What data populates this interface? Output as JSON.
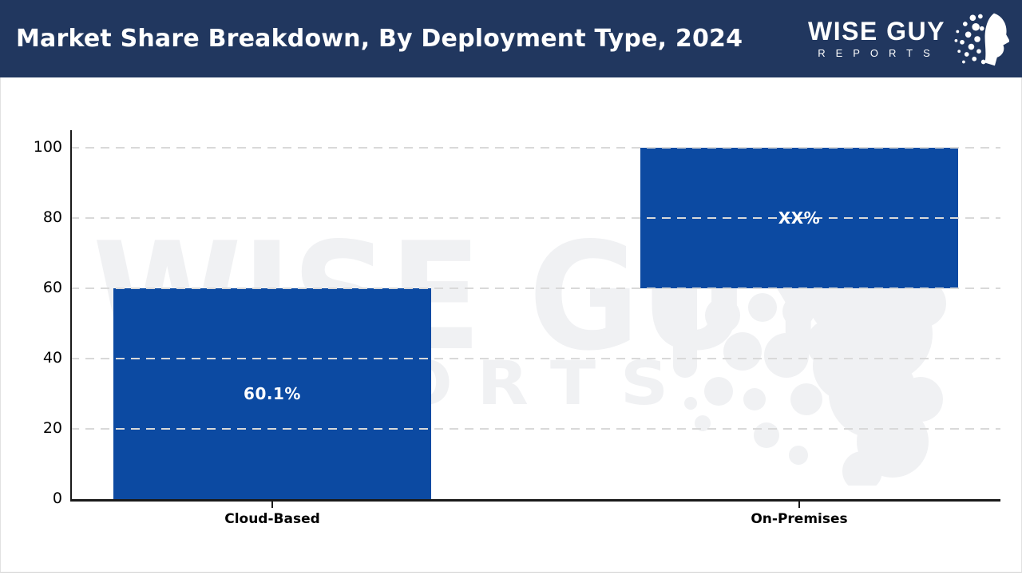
{
  "header": {
    "title": "Market Share Breakdown, By Deployment Type, 2024",
    "logo": {
      "line1": "WISE GUY",
      "line2": "REPORTS"
    }
  },
  "watermark": {
    "line1": "WISE GUY",
    "line2": "REPORTS"
  },
  "chart_data": {
    "type": "bar",
    "subtype": "floating-segment-share",
    "title": "Market Share Breakdown, By Deployment Type, 2024",
    "categories": [
      "Cloud-Based",
      "On-Premises"
    ],
    "bars": [
      {
        "category": "Cloud-Based",
        "start": 0,
        "end": 60.1,
        "label": "60.1%"
      },
      {
        "category": "On-Premises",
        "start": 60.1,
        "end": 100,
        "label": "XX%"
      }
    ],
    "yticks": [
      0,
      20,
      40,
      60,
      80,
      100
    ],
    "ylim": [
      0,
      105
    ],
    "xlabel": "",
    "ylabel": "",
    "grid": "dashed-horizontal",
    "legend": "none",
    "bar_color": "#0C4AA2",
    "label_color": "#ffffff"
  },
  "colors": {
    "header_bg": "#21375F",
    "bar": "#0C4AA2",
    "grid": "#d9d9d9",
    "axis": "#1a1a1a",
    "watermark": "#f0f1f3"
  }
}
